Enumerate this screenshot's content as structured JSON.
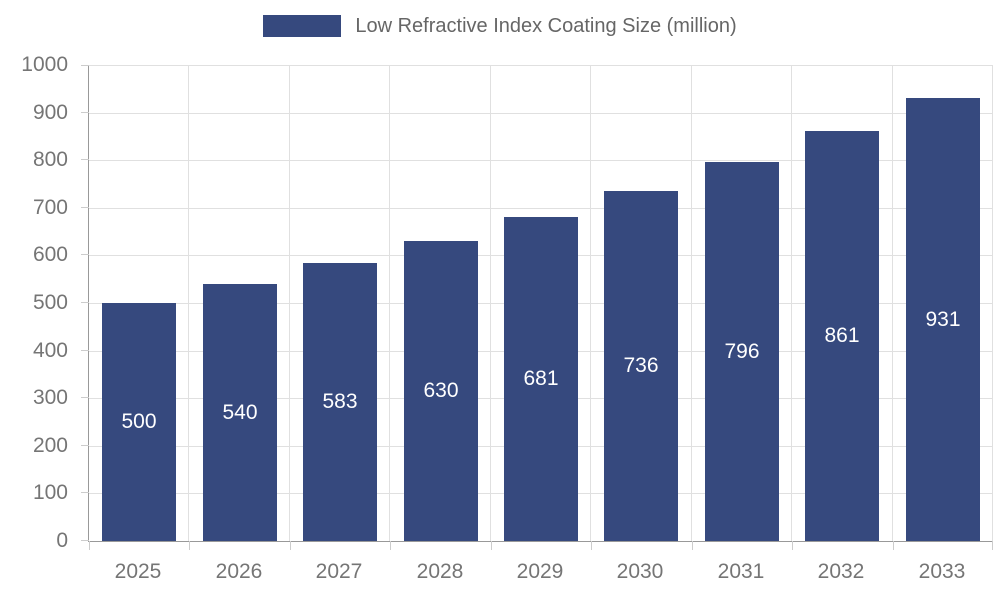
{
  "chart_data": {
    "type": "bar",
    "title": "Low Refractive Index Coating Size (million)",
    "legend": [
      "Low Refractive Index Coating Size (million)"
    ],
    "legend_position": "top-center",
    "categories": [
      "2025",
      "2026",
      "2027",
      "2028",
      "2029",
      "2030",
      "2031",
      "2032",
      "2033"
    ],
    "series": [
      {
        "name": "Low Refractive Index Coating Size (million)",
        "values": [
          500,
          540,
          583,
          630,
          681,
          736,
          796,
          861,
          931
        ],
        "color": "#36497E"
      }
    ],
    "xlabel": "",
    "ylabel": "",
    "ylim": [
      0,
      1000
    ],
    "ytick_step": 100,
    "grid": true,
    "value_labels": {
      "visible": true,
      "position": "center",
      "color": "#FFFFFF"
    },
    "style": {
      "background": "#FFFFFF",
      "bar_color": "#36497E",
      "grid_color": "#E0E0E0",
      "axis_color": "#999999",
      "tick_color": "#CCCCCC",
      "tick_label_color": "#757575",
      "legend_text_color": "#666666"
    }
  }
}
